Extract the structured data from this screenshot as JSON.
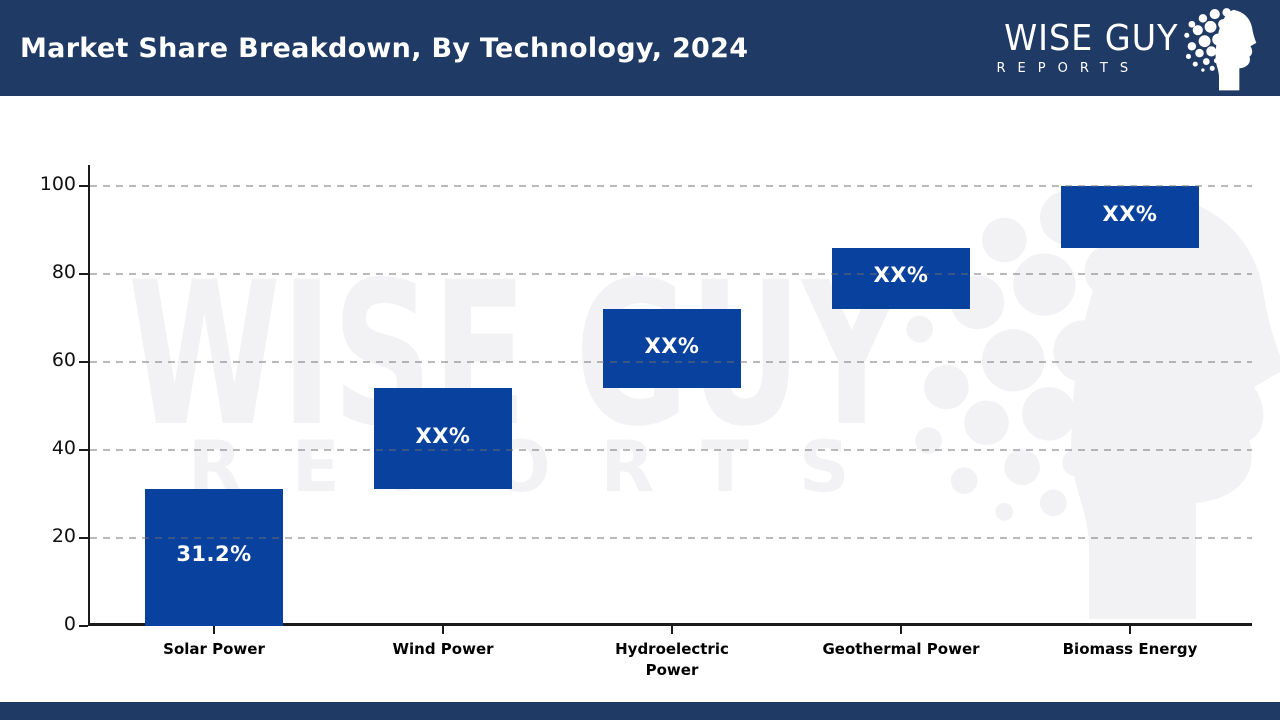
{
  "header": {
    "title": "Market Share Breakdown, By Technology, 2024",
    "logo": {
      "name": "WISE GUY",
      "subtitle": "REPORTS"
    }
  },
  "watermark": {
    "name": "WISE GUY",
    "subtitle": "REPORTS"
  },
  "colors": {
    "header_bg": "#1f3a64",
    "footer_bg": "#1f3a64",
    "watermark": "#f2f2f5",
    "axis": "#1b1b1b",
    "grid": "#bdbdbd"
  },
  "chart_data": {
    "type": "bar",
    "variant": "waterfall",
    "title": "Market Share Breakdown, By Technology, 2024",
    "categories": [
      "Solar Power",
      "Wind Power",
      "Hydroelectric\nPower",
      "Geothermal Power",
      "Biomass Energy"
    ],
    "series": [
      {
        "name": "Market share (%)",
        "segments": [
          {
            "category": "Solar Power",
            "start": 0,
            "end": 31.2,
            "label": "31.2%"
          },
          {
            "category": "Wind Power",
            "start": 31.2,
            "end": 54,
            "label": "XX%"
          },
          {
            "category": "Hydroelectric Power",
            "start": 54,
            "end": 72,
            "label": "XX%"
          },
          {
            "category": "Geothermal Power",
            "start": 72,
            "end": 86,
            "label": "XX%"
          },
          {
            "category": "Biomass Energy",
            "start": 86,
            "end": 100,
            "label": "XX%"
          }
        ]
      }
    ],
    "xlabel": "",
    "ylabel": "",
    "yticks": [
      0,
      20,
      40,
      60,
      80,
      100
    ],
    "ylim": [
      0,
      105
    ],
    "grid": {
      "axis": "y",
      "style": "dashed",
      "drawn_over_bars": true
    },
    "legend": "none",
    "bar_color": "#09419e",
    "bar_label_color": "#ffffff"
  }
}
